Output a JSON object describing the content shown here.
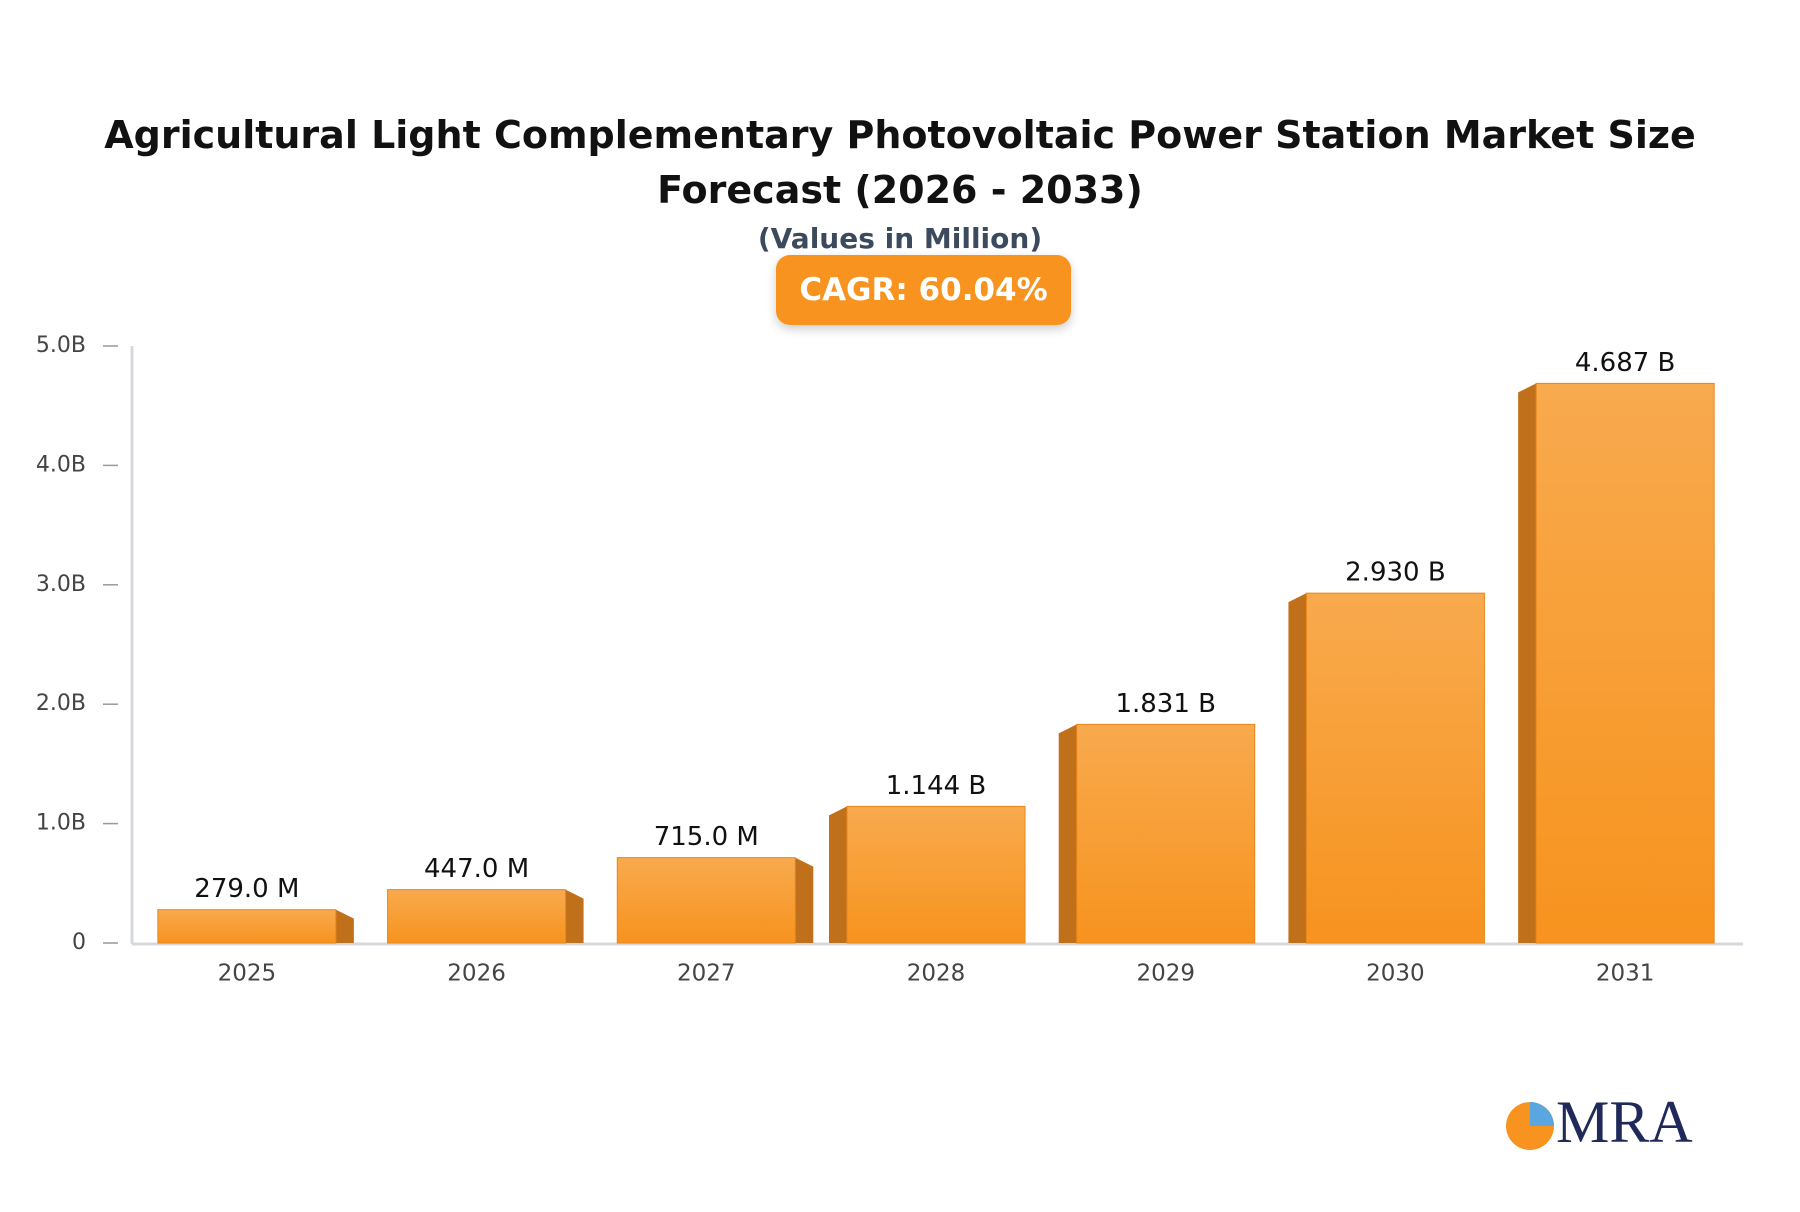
{
  "chart_data": {
    "type": "bar",
    "title": "Agricultural Light Complementary Photovoltaic Power Station Market Size Forecast (2026 - 2033)",
    "subtitle": "(Values in Million)",
    "annotation": "CAGR: 60.04%",
    "categories": [
      "2025",
      "2026",
      "2027",
      "2028",
      "2029",
      "2030",
      "2031"
    ],
    "values": [
      279,
      447,
      715,
      1144,
      1831,
      2930,
      4687
    ],
    "value_labels": [
      "279.0 M",
      "447.0 M",
      "715.0 M",
      "1.144 B",
      "1.831 B",
      "2.930 B",
      "4.687 B"
    ],
    "color": "#f7931e",
    "ylim": [
      0,
      5000
    ],
    "yticks": [
      0,
      {
        "value": 1000,
        "label": "1.0B"
      },
      {
        "value": 2000,
        "label": "2.0B"
      },
      {
        "value": 3000,
        "label": "3.0B"
      },
      {
        "value": 4000,
        "label": "4.0B"
      },
      {
        "value": 5000,
        "label": "5.0B"
      }
    ],
    "grid": false
  },
  "logo": "MRA"
}
